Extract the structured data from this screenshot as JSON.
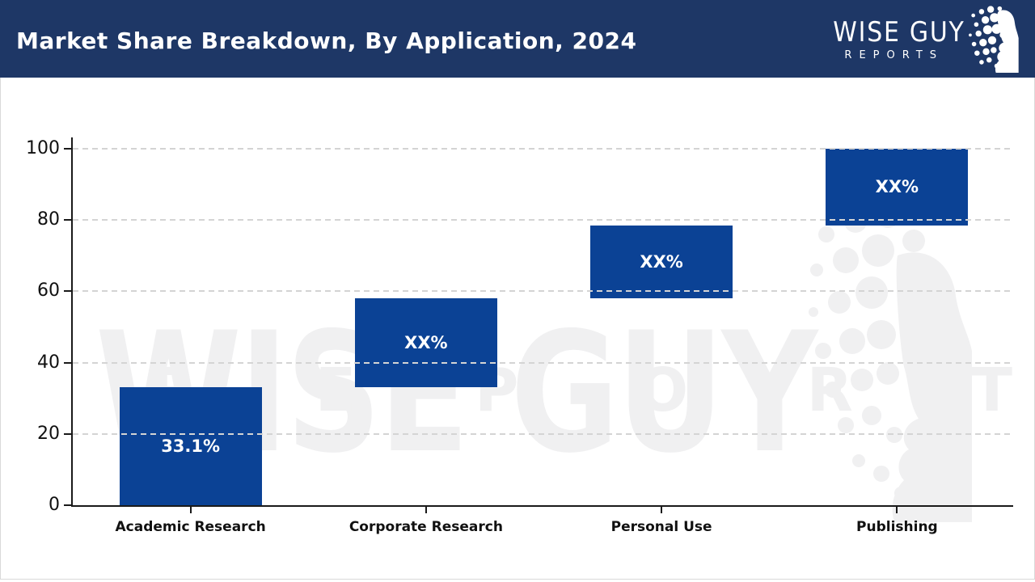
{
  "header": {
    "title": "Market Share Breakdown, By Application, 2024",
    "bg_color": "#1e3766",
    "logo": {
      "line1": "WISE GUY",
      "line2": "REPORTS"
    }
  },
  "watermark": {
    "line1": "WISE GUY",
    "line2": "REPORTS"
  },
  "chart_data": {
    "type": "bar",
    "subtype": "waterfall",
    "title": "Market Share Breakdown, By Application, 2024",
    "categories": [
      "Academic Research",
      "Corporate Research",
      "Personal Use",
      "Publishing"
    ],
    "segments": [
      {
        "category": "Academic Research",
        "start": 0,
        "end": 33.1,
        "label": "33.1%"
      },
      {
        "category": "Corporate Research",
        "start": 33.1,
        "end": 58.0,
        "label": "XX%"
      },
      {
        "category": "Personal Use",
        "start": 58.0,
        "end": 78.5,
        "label": "XX%"
      },
      {
        "category": "Publishing",
        "start": 78.5,
        "end": 100,
        "label": "XX%"
      }
    ],
    "xlabel": "",
    "ylabel": "",
    "yticks": [
      0,
      20,
      40,
      60,
      80,
      100
    ],
    "ylim": [
      0,
      103.6
    ],
    "grid": "horizontal-dashed",
    "gridline_values": [
      20,
      40,
      60,
      80,
      100
    ],
    "legend": "none",
    "bar_color": "#0b4295",
    "bar_label_color": "#ffffff",
    "first_bar_value": "33.1%",
    "placeholder_value": "XX%"
  }
}
